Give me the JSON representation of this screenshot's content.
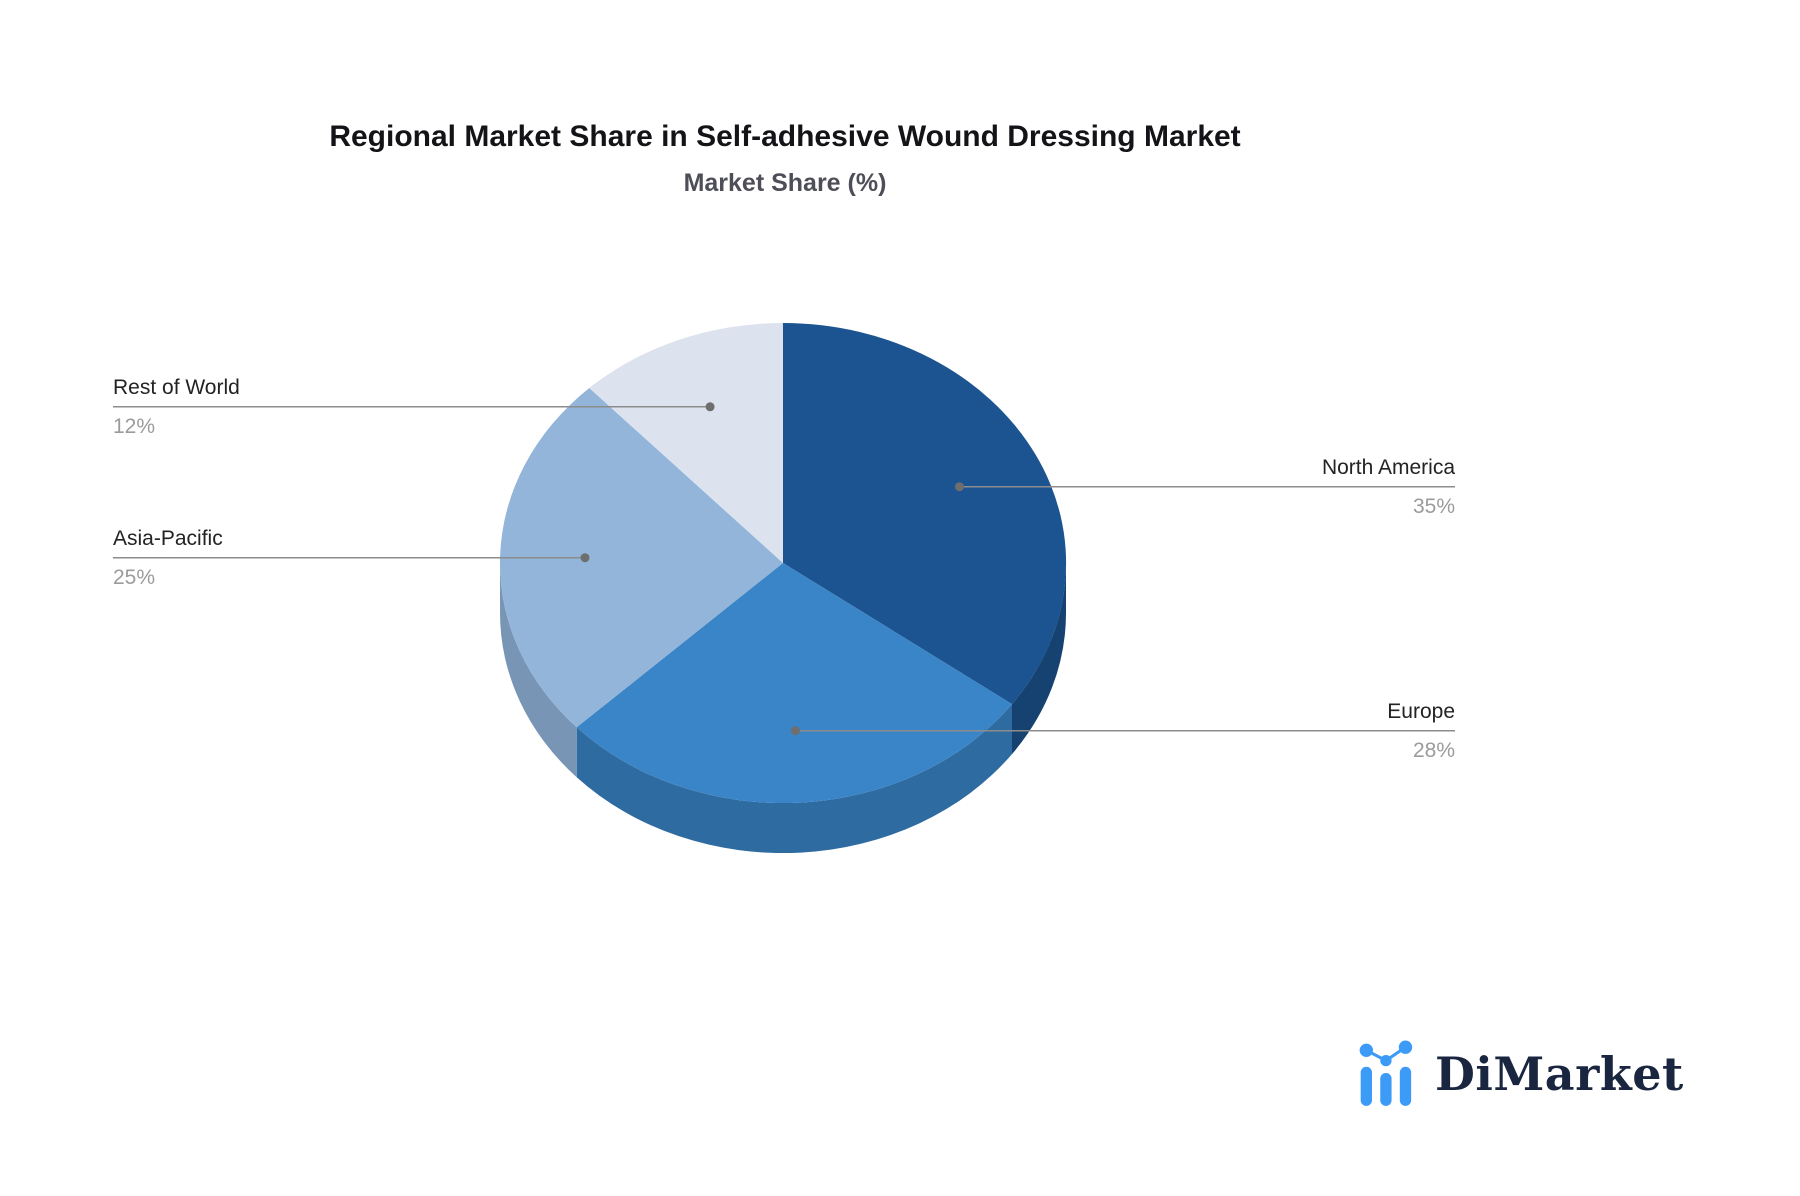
{
  "chart_data": {
    "type": "pie",
    "title": "Regional Market Share in Self-adhesive Wound Dressing Market",
    "subtitle": "Market Share (%)",
    "unit": "%",
    "effect": "3d",
    "direction": "clockwise",
    "start_angle_deg": 0,
    "legend": "none",
    "slices": [
      {
        "label": "North America",
        "value": 35,
        "value_label": "35%",
        "color": "#1b5490",
        "side_color": "#154270"
      },
      {
        "label": "Europe",
        "value": 28,
        "value_label": "28%",
        "color": "#3a85c7",
        "side_color": "#2e6ba1"
      },
      {
        "label": "Asia-Pacific",
        "value": 25,
        "value_label": "25%",
        "color": "#93b5da",
        "side_color": "#7995b5"
      },
      {
        "label": "Rest of World",
        "value": 12,
        "value_label": "12%",
        "color": "#dde3ee",
        "side_color": "#b9c3d6"
      }
    ],
    "label_name_color": "#232323",
    "label_value_color": "#9b9b9b",
    "connector_color": "#8c8c8c",
    "connector_dot_color": "#6e6e6e"
  },
  "brand": {
    "name": "DiMarket",
    "icon": "bar-chart-logo-icon",
    "icon_color": "#3d9bf8",
    "text_color": "#1a2640"
  }
}
